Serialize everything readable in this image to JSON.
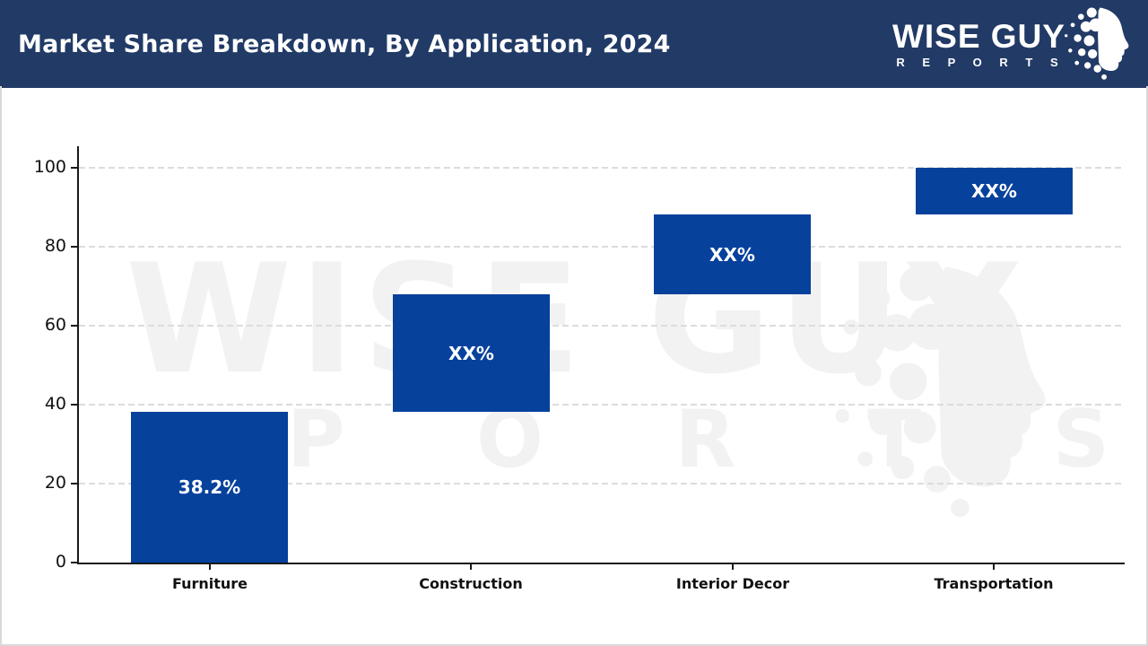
{
  "header": {
    "title": "Market Share Breakdown, By Application, 2024",
    "logo": {
      "line1": "WISE GUY",
      "line2": "R E P O R T S",
      "icon": "dotted-head-profile"
    }
  },
  "watermark": {
    "line1": "WISE GUY",
    "line2": "P O R T S",
    "icon": "dotted-head-profile"
  },
  "chart_data": {
    "type": "bar",
    "subtype": "waterfall",
    "title": "Market Share Breakdown, By Application, 2024",
    "categories": [
      "Furniture",
      "Construction",
      "Interior Decor",
      "Transportation"
    ],
    "segments": [
      {
        "category": "Furniture",
        "start": 0,
        "end": 38.2,
        "label": "38.2%"
      },
      {
        "category": "Construction",
        "start": 38.2,
        "end": 68.0,
        "label": "XX%"
      },
      {
        "category": "Interior Decor",
        "start": 68.0,
        "end": 88.2,
        "label": "XX%"
      },
      {
        "category": "Transportation",
        "start": 88.2,
        "end": 100,
        "label": "XX%"
      }
    ],
    "ylim": [
      0,
      100
    ],
    "yticks": [
      0,
      20,
      40,
      60,
      80,
      100
    ],
    "grid": "horizontal dashed",
    "legend": "none"
  },
  "colors": {
    "header_bg": "#213a66",
    "bar": "#06419c",
    "bar_label": "#ffffff",
    "axis": "#1a1a1a",
    "gridline": "#dcdcdc",
    "watermark": "#f2f2f2",
    "frame_border": "#d9d9d9"
  }
}
